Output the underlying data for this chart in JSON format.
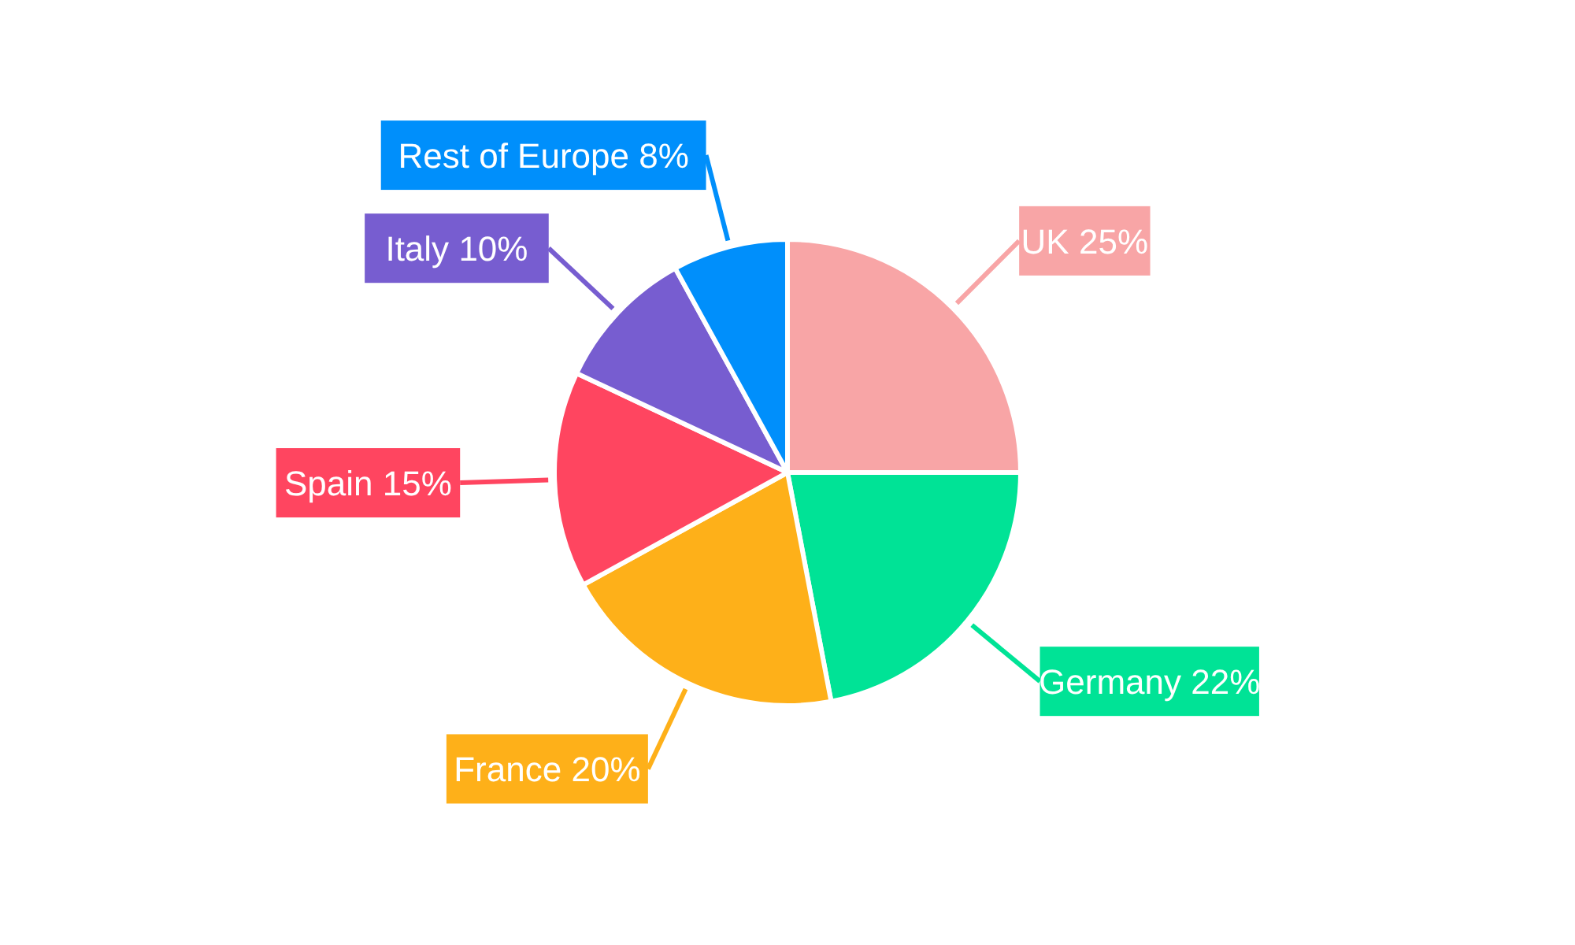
{
  "chart_data": {
    "type": "pie",
    "categories": [
      "UK",
      "Germany",
      "France",
      "Spain",
      "Italy",
      "Rest of Europe"
    ],
    "values": [
      25,
      22,
      20,
      15,
      10,
      8
    ],
    "value_labels": [
      "25%",
      "22%",
      "20%",
      "15%",
      "10%",
      "8%"
    ],
    "colors": [
      "#f8a5a6",
      "#00e396",
      "#feb019",
      "#ff4560",
      "#775dd0",
      "#008ffb"
    ]
  }
}
